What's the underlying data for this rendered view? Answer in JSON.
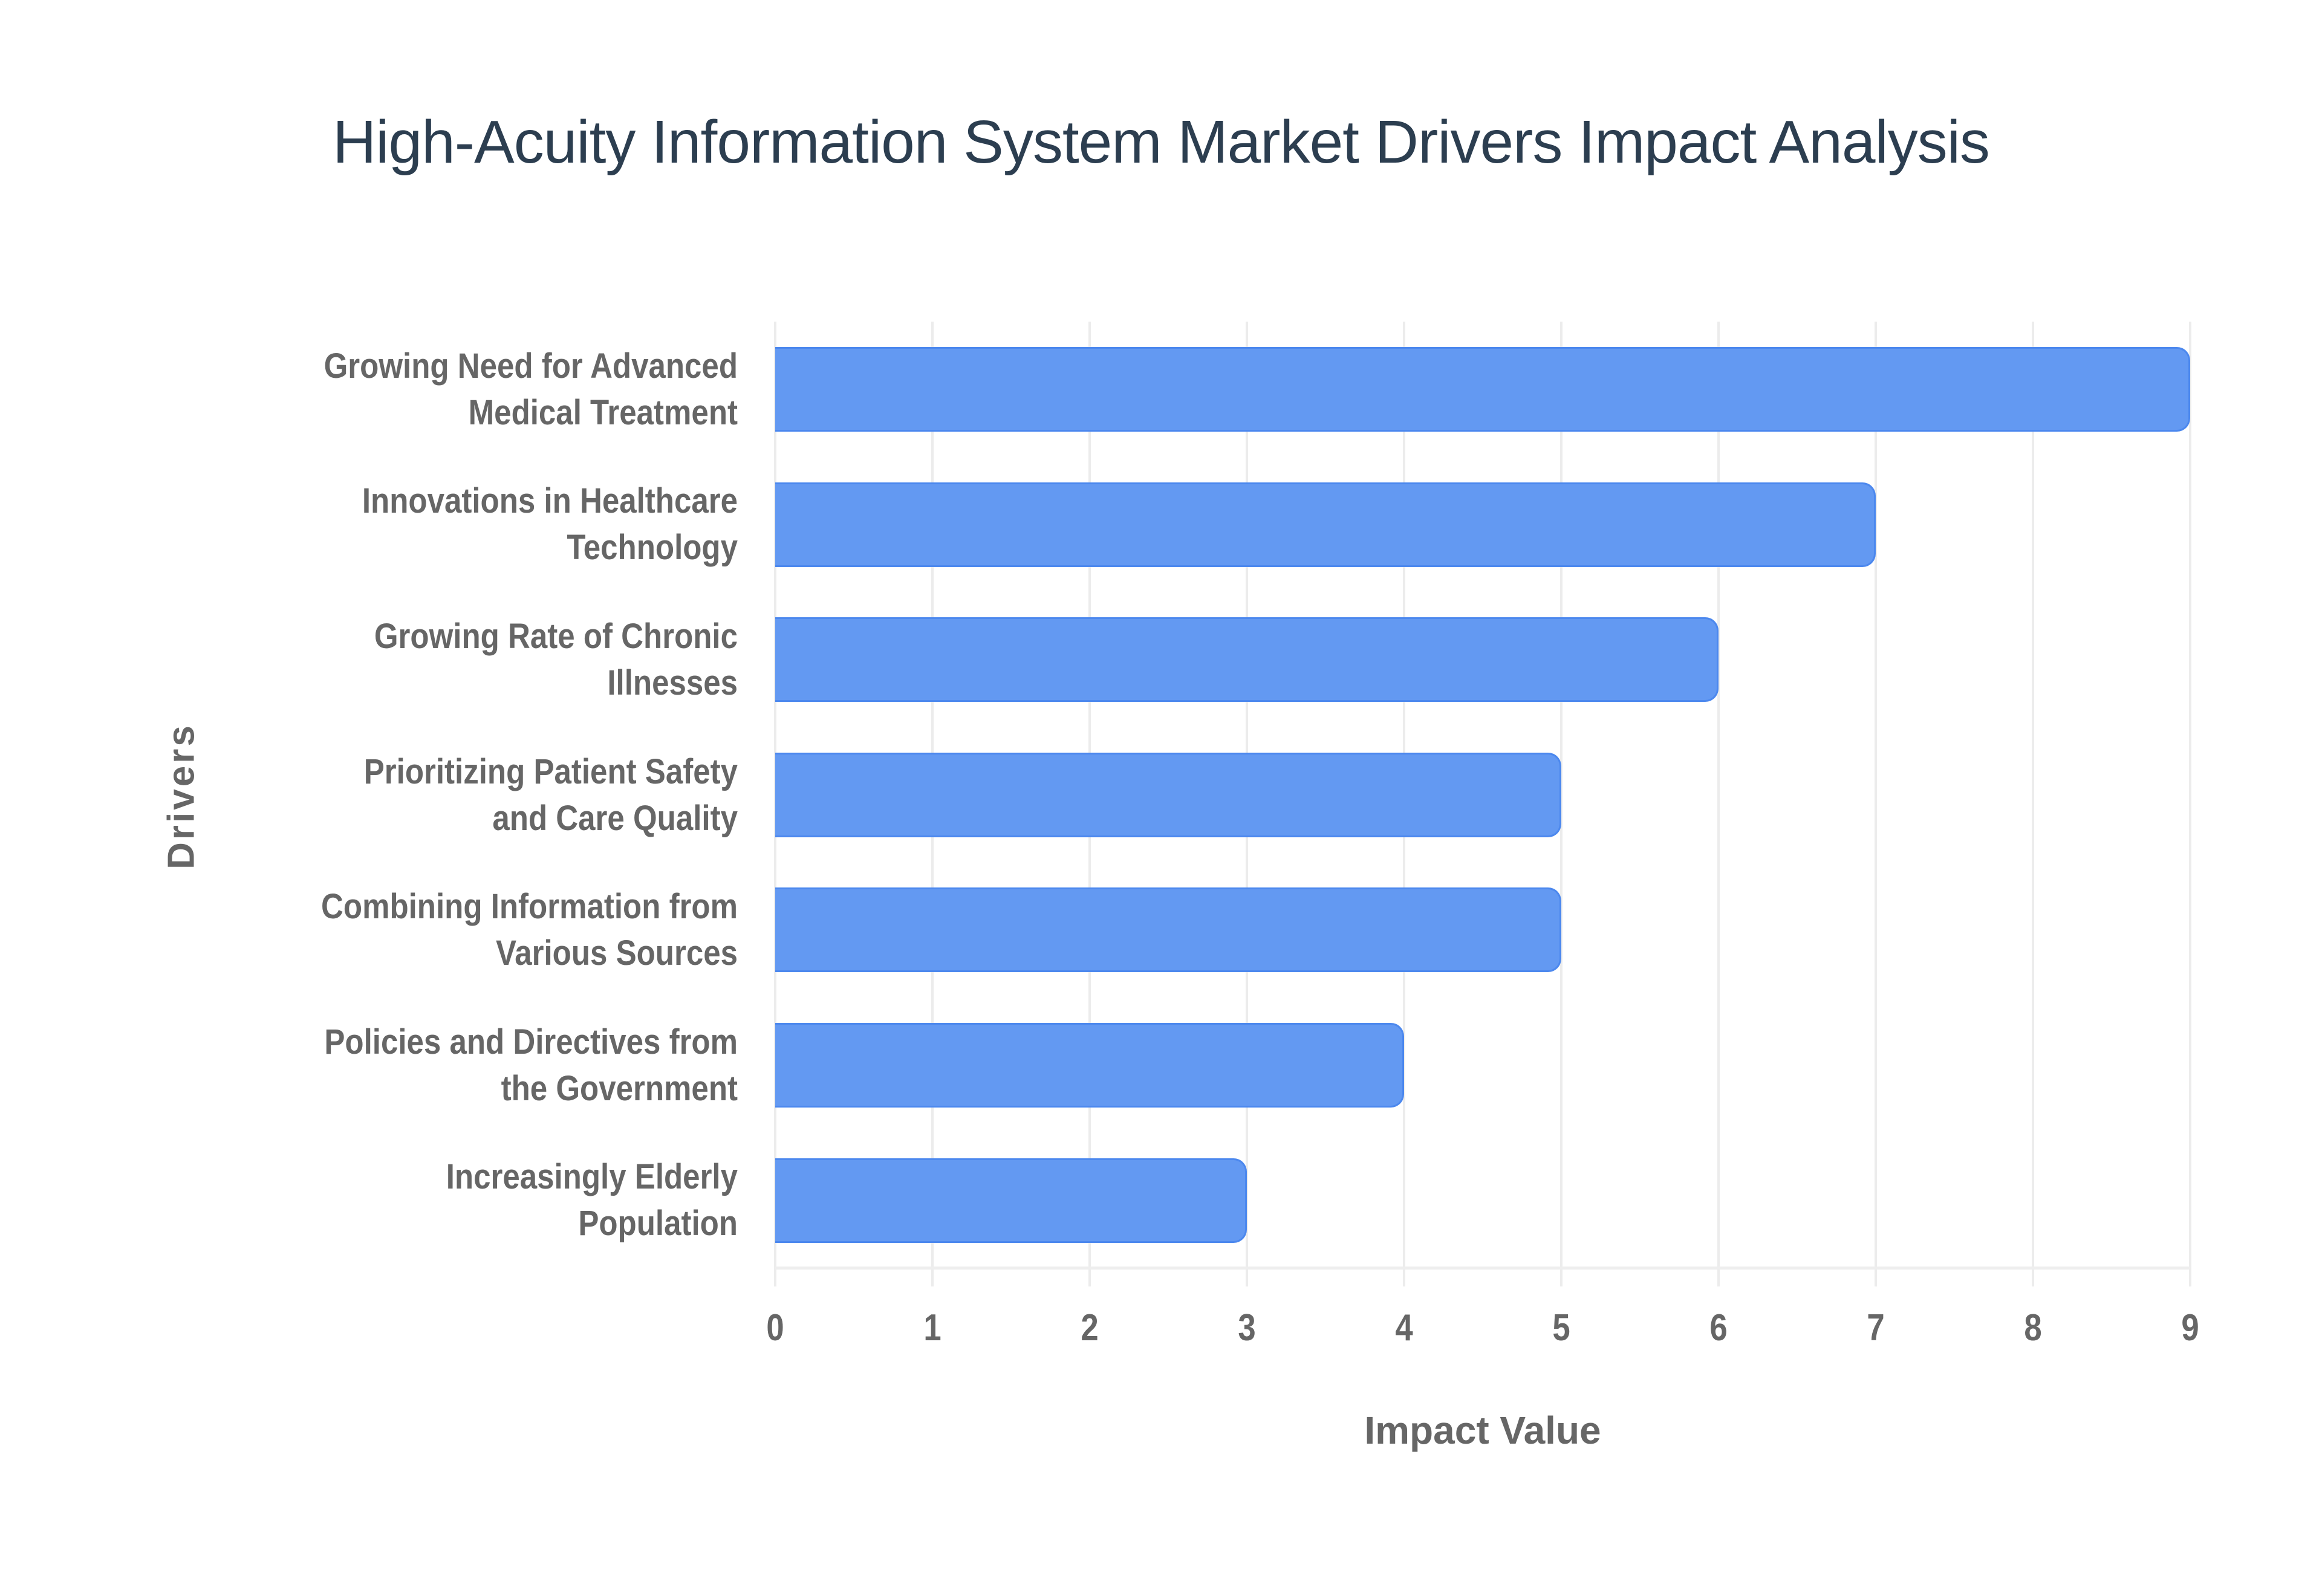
{
  "chart_data": {
    "type": "bar",
    "orientation": "horizontal",
    "title": "High-Acuity Information System Market Drivers Impact Analysis",
    "xlabel": "Impact Value",
    "ylabel": "Drivers",
    "xlim": [
      0,
      9
    ],
    "x_ticks": [
      "0",
      "1",
      "2",
      "3",
      "4",
      "5",
      "6",
      "7",
      "8",
      "9"
    ],
    "grid": true,
    "legend": null,
    "categories": [
      "Growing Need for Advanced Medical Treatment",
      "Innovations in Healthcare Technology",
      "Growing Rate of Chronic Illnesses",
      "Prioritizing Patient Safety and Care Quality",
      "Combining Information from Various Sources",
      "Policies and Directives from the Government",
      "Increasingly Elderly Population"
    ],
    "values": [
      9,
      7,
      6,
      5,
      5,
      4,
      3
    ],
    "colors": {
      "bar_fill": "#6399f2",
      "bar_border": "#4c88ee",
      "title": "#2c3e50",
      "axis_text": "#666666",
      "grid": "#ececec"
    }
  },
  "labels": [
    {
      "line1": "Growing Need for Advanced",
      "line2": "Medical Treatment"
    },
    {
      "line1": "Innovations in Healthcare",
      "line2": "Technology"
    },
    {
      "line1": "Growing Rate of Chronic",
      "line2": "Illnesses"
    },
    {
      "line1": "Prioritizing Patient Safety",
      "line2": "and Care Quality"
    },
    {
      "line1": "Combining Information from",
      "line2": "Various Sources"
    },
    {
      "line1": "Policies and Directives from",
      "line2": "the Government"
    },
    {
      "line1": "Increasingly Elderly",
      "line2": "Population"
    }
  ]
}
